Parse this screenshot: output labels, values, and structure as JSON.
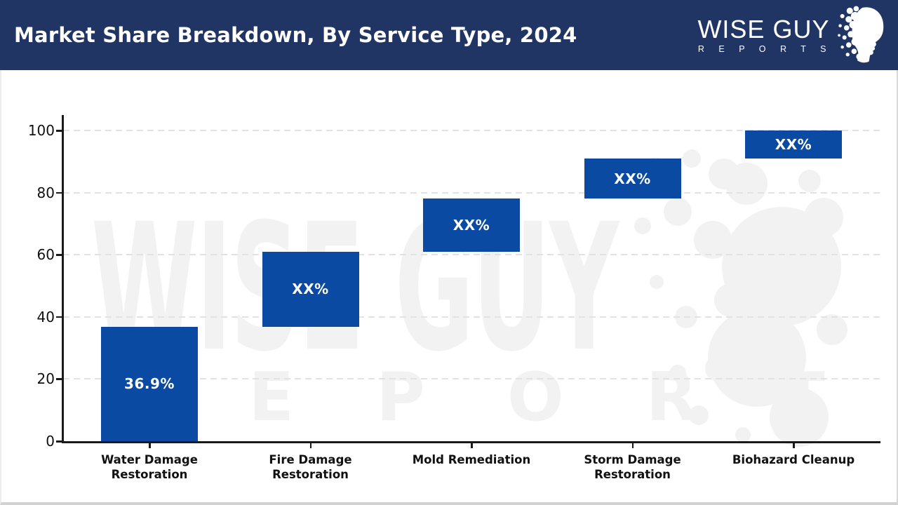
{
  "header": {
    "title": "Market Share Breakdown, By Service Type, 2024",
    "logo": {
      "line1": "WISE GUY",
      "line2": "R E P O R T S",
      "icon": "dotted-head-profile-icon"
    }
  },
  "watermark": {
    "line1": "WISE GUY",
    "line2": "R E P O R T S",
    "icon": "dotted-head-profile-watermark"
  },
  "colors": {
    "header_bg": "#213564",
    "bar": "#0b4aa2",
    "bar_label": "#ffffff",
    "axis": "#1a1a1a",
    "gridline": "#e2e2e2",
    "watermark": "#f2f2f2"
  },
  "chart_data": {
    "type": "bar",
    "variant": "waterfall",
    "title": "Market Share Breakdown, By Service Type, 2024",
    "categories": [
      "Water Damage Restoration",
      "Fire Damage Restoration",
      "Mold Remediation",
      "Storm Damage Restoration",
      "Biohazard Cleanup"
    ],
    "segments": [
      {
        "category": "Water Damage Restoration",
        "start": 0,
        "end": 36.9,
        "label": "36.9%"
      },
      {
        "category": "Fire Damage Restoration",
        "start": 36.9,
        "end": 61,
        "label": "XX%"
      },
      {
        "category": "Mold Remediation",
        "start": 61,
        "end": 78,
        "label": "XX%"
      },
      {
        "category": "Storm Damage Restoration",
        "start": 78,
        "end": 91,
        "label": "XX%"
      },
      {
        "category": "Biohazard Cleanup",
        "start": 91,
        "end": 100,
        "label": "XX%"
      }
    ],
    "yticks": [
      0,
      20,
      40,
      60,
      80,
      100
    ],
    "ylim": [
      0,
      105
    ],
    "xlabel": "",
    "ylabel": "",
    "grid": {
      "horizontal": true,
      "style": "dashed"
    },
    "legend": "none",
    "bar_color": "#0b4aa2",
    "bar_label_color": "#ffffff"
  }
}
